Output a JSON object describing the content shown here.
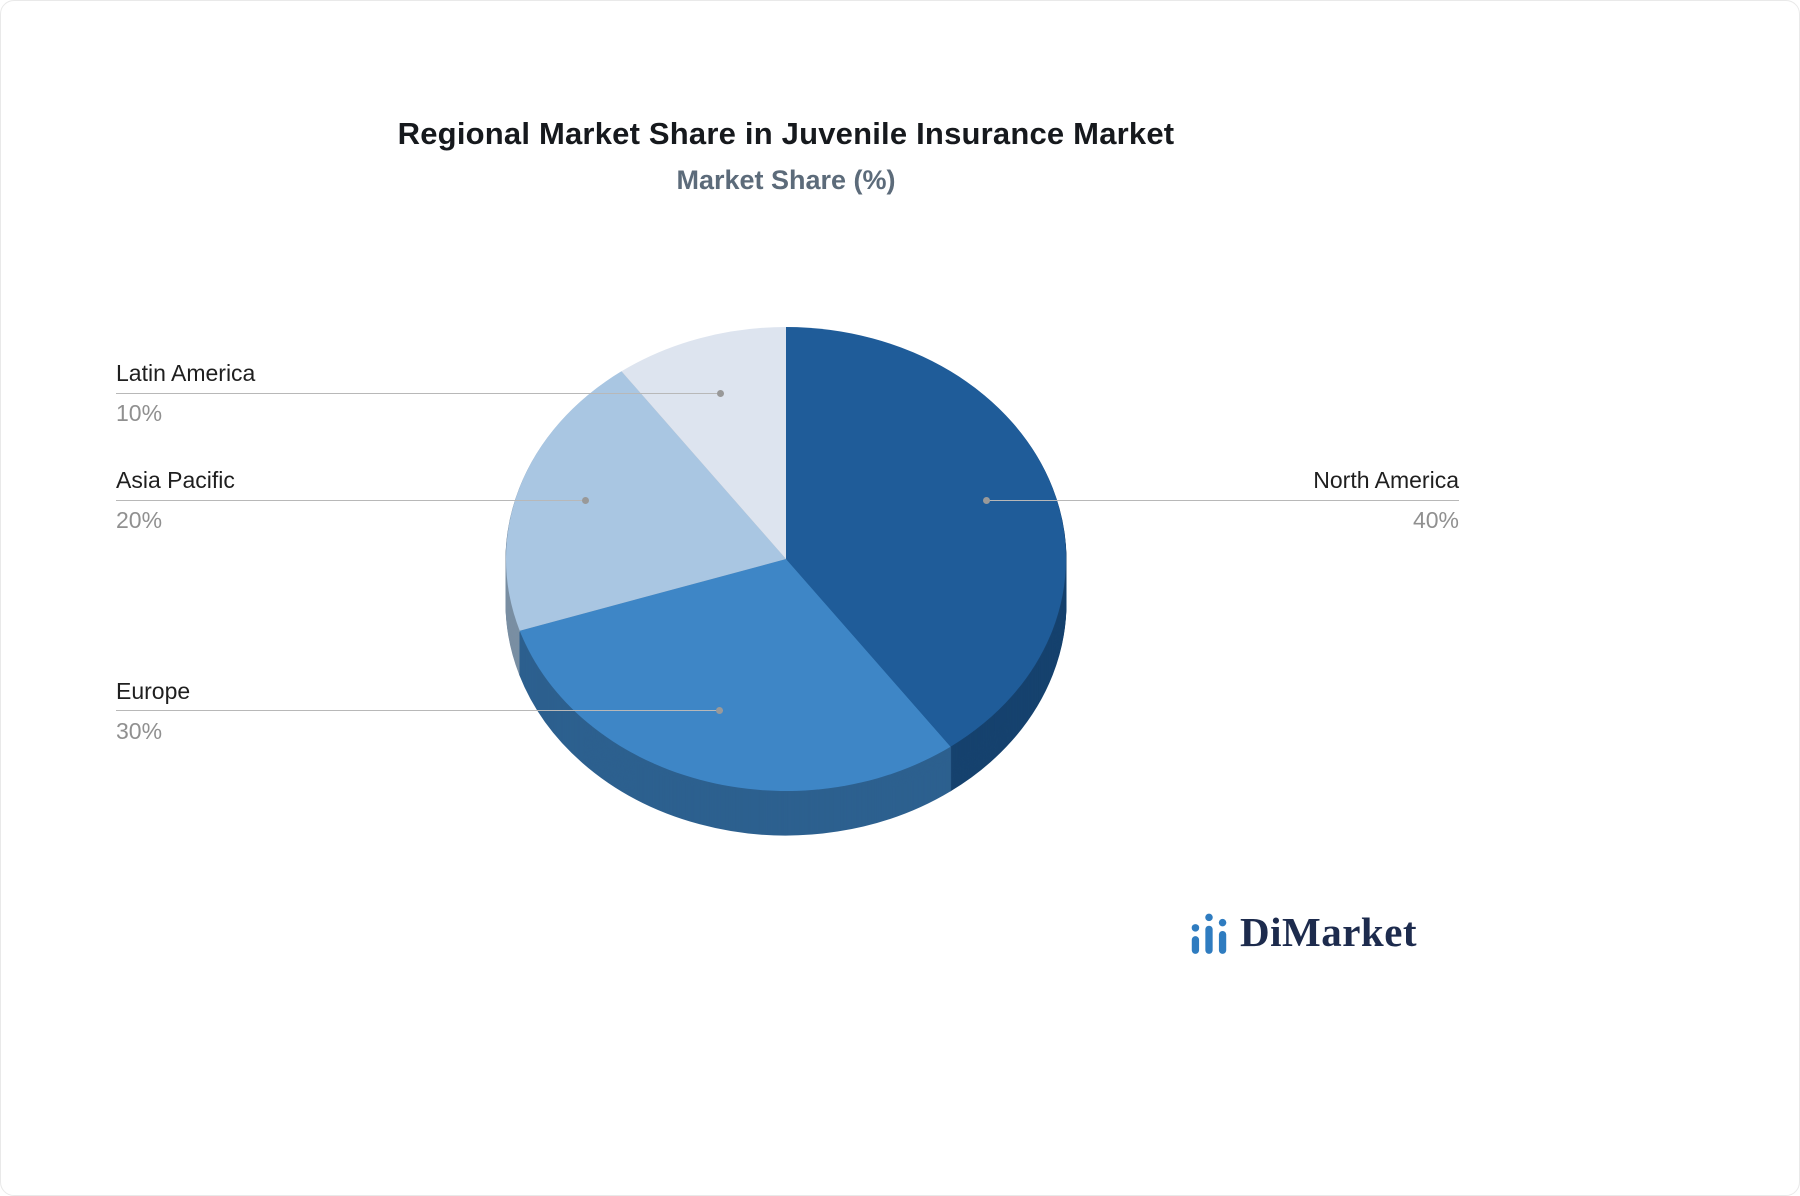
{
  "chart_data": {
    "type": "pie",
    "style": "3d",
    "title": "Regional Market Share in Juvenile Insurance Market",
    "subtitle": "Market Share (%)",
    "categories": [
      "North America",
      "Europe",
      "Asia Pacific",
      "Latin America"
    ],
    "values": [
      40,
      30,
      20,
      10
    ],
    "value_labels": [
      "40%",
      "30%",
      "20%",
      "10%"
    ],
    "colors": [
      "#1F5C99",
      "#3E86C6",
      "#A9C6E2",
      "#DDE4EF"
    ],
    "start_angle_deg": 0,
    "direction": "clockwise",
    "legend_position": "none",
    "labels": "leader-lines"
  },
  "branding": {
    "logo_text": "DiMarket",
    "logo_text_color": "#1D2B4D",
    "logo_icon_color": "#2F7CC0"
  }
}
